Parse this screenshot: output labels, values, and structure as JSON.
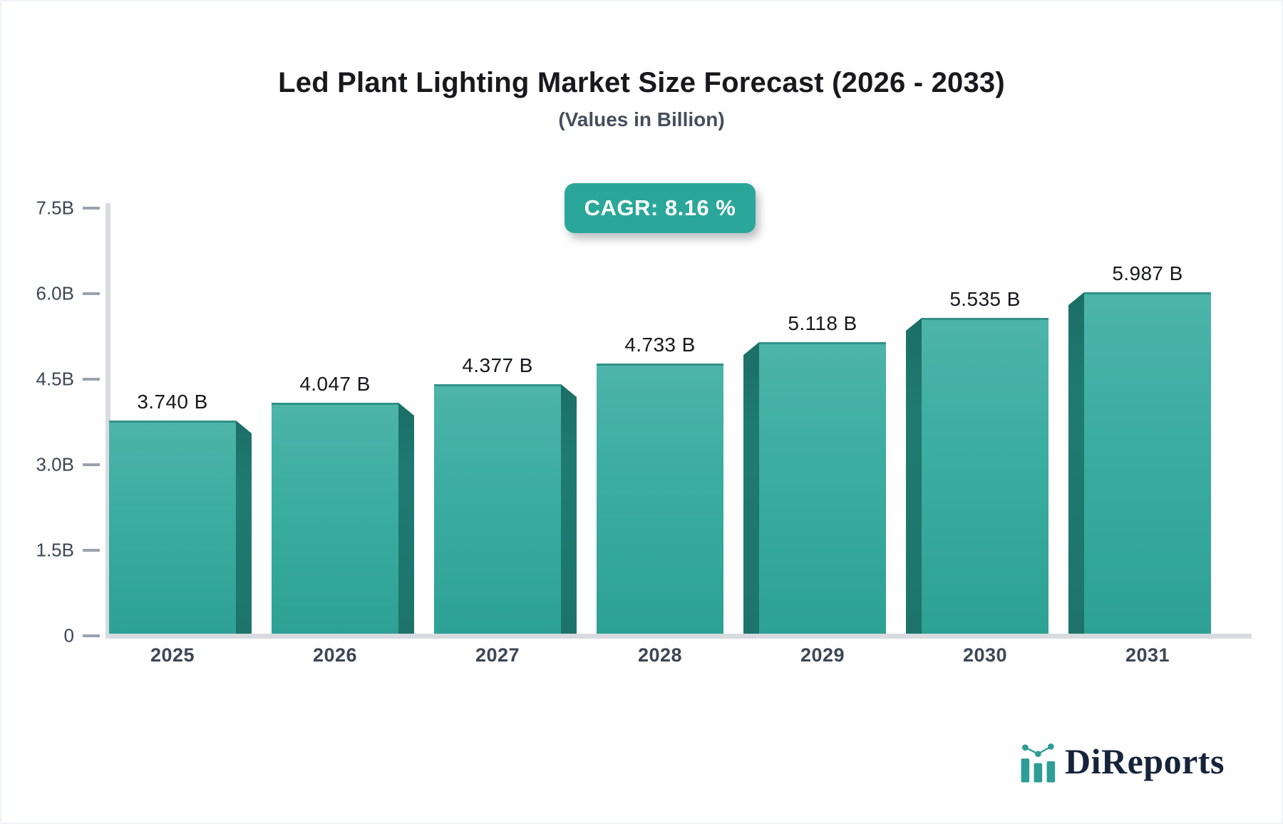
{
  "title": "Led Plant Lighting Market Size Forecast (2026 - 2033)",
  "subtitle": "(Values in Billion)",
  "cagr_badge": "CAGR: 8.16 %",
  "chart_data": {
    "type": "bar",
    "categories": [
      "2025",
      "2026",
      "2027",
      "2028",
      "2029",
      "2030",
      "2031"
    ],
    "values": [
      3.74,
      4.047,
      4.377,
      4.733,
      5.118,
      5.535,
      5.987
    ],
    "value_labels": [
      "3.740 B",
      "4.047 B",
      "4.377 B",
      "4.733 B",
      "5.118 B",
      "5.535 B",
      "5.987 B"
    ],
    "title": "Led Plant Lighting Market Size Forecast (2026 - 2033)",
    "xlabel": "",
    "ylabel": "",
    "ylim": [
      0,
      7.5
    ],
    "y_ticks": [
      {
        "label": "7.5B",
        "value": 7.5
      },
      {
        "label": "6.0B",
        "value": 6.0
      },
      {
        "label": "4.5B",
        "value": 4.5
      },
      {
        "label": "3.0B",
        "value": 3.0
      },
      {
        "label": "1.5B",
        "value": 1.5
      },
      {
        "label": "0",
        "value": 0
      }
    ],
    "grid": false,
    "legend": "none",
    "bar_style": "3d-perspective",
    "colors": {
      "bar_top": "#4db4a9",
      "bar_bottom": "#2ea195",
      "bar_side": "#1f7b72",
      "axis": "#d8dbe0",
      "tick_text": "#3c4654",
      "value_text": "#15181c"
    }
  },
  "badge_color": "#2aa79a",
  "logo": {
    "text": "DiReports",
    "icon": "bar-chart-trend-icon",
    "icon_color": "#2d9d96",
    "text_color": "#16233b"
  }
}
